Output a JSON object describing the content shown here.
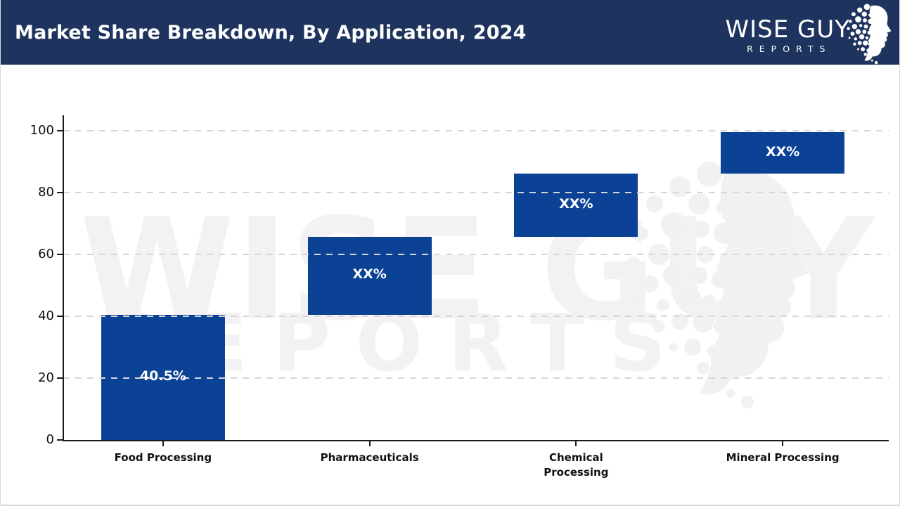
{
  "header": {
    "title": "Market Share Breakdown, By Application, 2024",
    "bg_color": "#1e345e",
    "logo": {
      "line1": "WISE GUY",
      "line2": "REPORTS"
    }
  },
  "watermark": {
    "line1": "WISE GUY",
    "line2": "REPORTS"
  },
  "chart_data": {
    "type": "bar",
    "subtype": "waterfall",
    "title": "Market Share Breakdown, By Application, 2024",
    "xlabel": "",
    "ylabel": "",
    "ylim": [
      0,
      105
    ],
    "yticks": [
      0,
      20,
      40,
      60,
      80,
      100
    ],
    "grid": "horizontal dashed",
    "bar_color": "#0b4296",
    "value_label_color": "#ffffff",
    "categories": [
      "Food Processing",
      "Pharmaceuticals",
      "Chemical\nProcessing",
      "Mineral Processing"
    ],
    "segments": [
      {
        "category": "Food Processing",
        "start": 0,
        "end": 40.5,
        "label": "40.5%"
      },
      {
        "category": "Pharmaceuticals",
        "start": 40.5,
        "end": 65.7,
        "label": "XX%"
      },
      {
        "category": "Chemical Processing",
        "start": 65.7,
        "end": 86.1,
        "label": "XX%"
      },
      {
        "category": "Mineral Processing",
        "start": 86.1,
        "end": 99.5,
        "label": "XX%"
      }
    ]
  }
}
